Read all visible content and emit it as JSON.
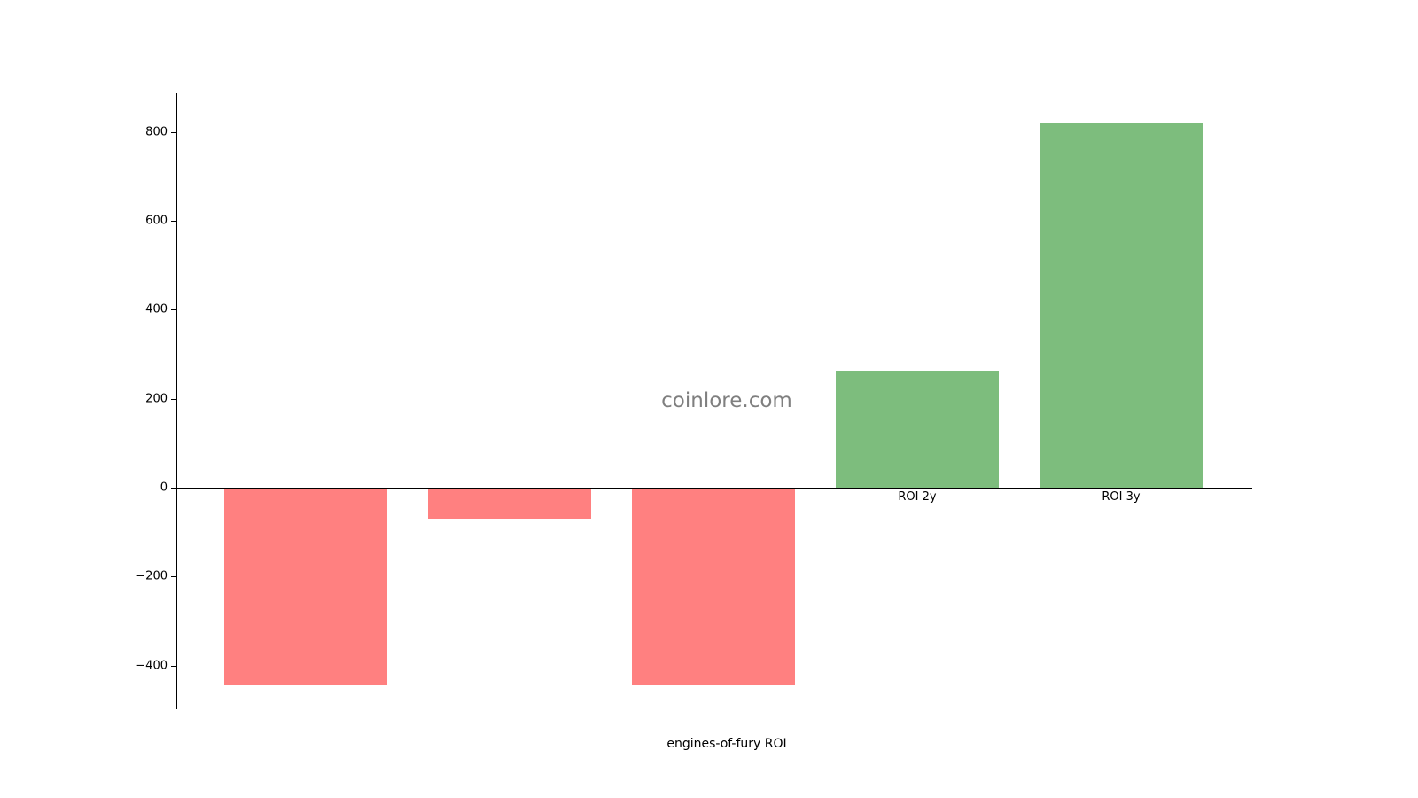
{
  "page": {
    "background_color": "#ffffff"
  },
  "chart_data": {
    "type": "bar",
    "title": "",
    "xlabel": "engines-of-fury ROI",
    "ylabel": "",
    "watermark": "coinlore.com",
    "watermark_color": "#7f7f7f",
    "categories": [
      "",
      "",
      "",
      "ROI 2y",
      "ROI 3y"
    ],
    "values": [
      -441,
      -68,
      -441,
      264,
      819
    ],
    "positive_color": "#7dbd7d",
    "negative_color": "#ff8080",
    "axis_color": "#000000",
    "text_color": "#000000",
    "yticks": [
      800,
      600,
      400,
      200,
      0,
      -200,
      -400
    ],
    "ytick_labels": [
      "800",
      "600",
      "400",
      "200",
      "0",
      "−200",
      "−400"
    ],
    "ylim": [
      -500,
      890
    ],
    "grid": false,
    "legend": null,
    "notes": "x tick labels for the three negative bars are covered by the bars and not visible"
  }
}
